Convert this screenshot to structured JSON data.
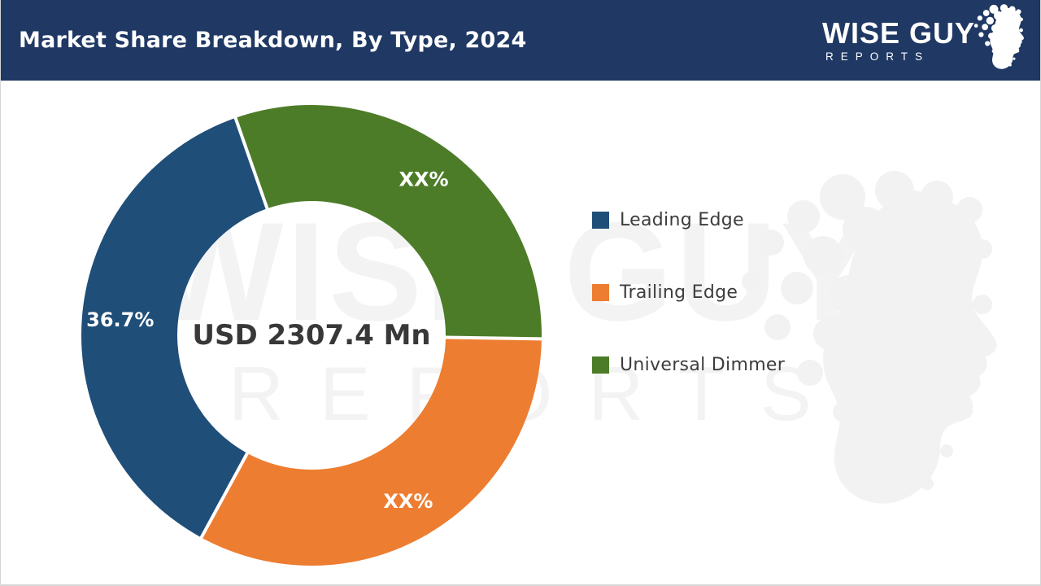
{
  "header": {
    "title": "Market Share Breakdown, By Type, 2024",
    "bg_color": "#1f3864",
    "logo": {
      "line1": "WISE GUY",
      "line2": "REPORTS"
    }
  },
  "chart_data": {
    "type": "donut",
    "title": "Market Share Breakdown, By Type, 2024",
    "center_label": "USD 2307.4 Mn",
    "start_angle_deg_clockwise_from_top": 208.6,
    "outer_radius": 283,
    "inner_radius": 165,
    "label_radius": 236,
    "segments": [
      {
        "name": "Leading Edge",
        "value_pct": 36.7,
        "display_label": "36.7%",
        "color": "#1f4e79"
      },
      {
        "name": "Universal Dimmer",
        "value_pct": 30.6,
        "display_label": "XX%",
        "color": "#4d7c28"
      },
      {
        "name": "Trailing Edge",
        "value_pct": 32.7,
        "display_label": "XX%",
        "color": "#ed7d31"
      }
    ],
    "legend": [
      {
        "label": "Leading Edge",
        "color": "#1f4e79"
      },
      {
        "label": "Trailing Edge",
        "color": "#ed7d31"
      },
      {
        "label": "Universal Dimmer",
        "color": "#4d7c28"
      }
    ],
    "legend_position": "right"
  },
  "watermark": {
    "line1": "WISE GUY",
    "line2": "REPORTS"
  }
}
